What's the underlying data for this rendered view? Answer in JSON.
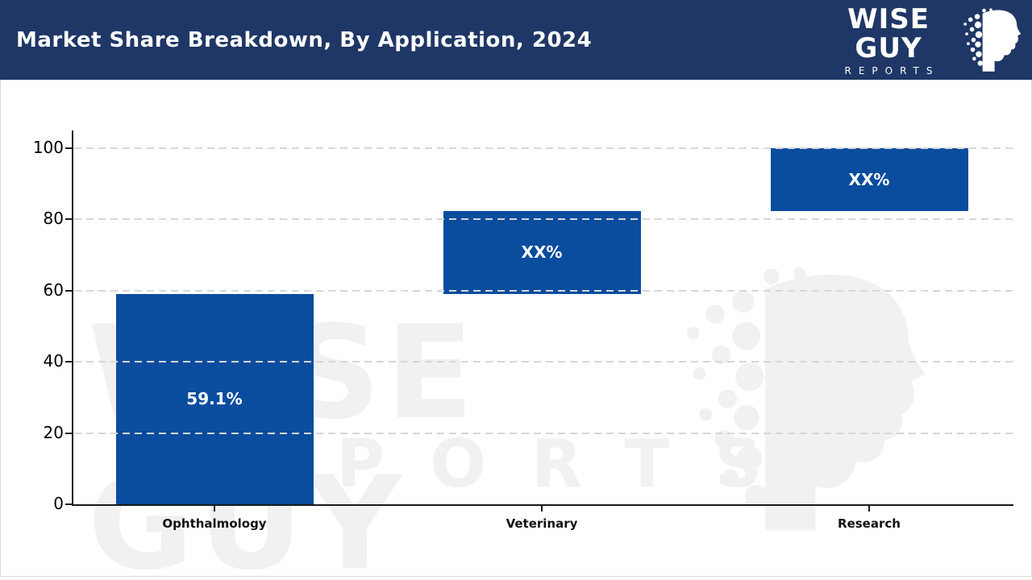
{
  "header": {
    "title": "Market Share Breakdown, By Application, 2024",
    "logo": {
      "line1": "WISE GUY",
      "line2": "REPORTS"
    }
  },
  "watermark": {
    "line1": "WISE GUY",
    "line2": "REPORTS"
  },
  "colors": {
    "header_bg": "#1f3766",
    "bar": "#0a4c9e",
    "bar_label": "#ffffff",
    "grid": "#d7d7d7",
    "axis": "#1a1a1a",
    "tick_label": "#000000",
    "watermark": "#f1f1f3",
    "logo_white": "#ffffff"
  },
  "chart_data": {
    "type": "bar",
    "subtype": "waterfall",
    "title": "Market Share Breakdown, By Application, 2024",
    "categories": [
      "Ophthalmology",
      "Veterinary",
      "Research"
    ],
    "bars": [
      {
        "category": "Ophthalmology",
        "start": 0,
        "end": 59.1,
        "label": "59.1%"
      },
      {
        "category": "Veterinary",
        "start": 59.1,
        "end": 82.4,
        "label": "XX%"
      },
      {
        "category": "Research",
        "start": 82.4,
        "end": 100,
        "label": "XX%"
      }
    ],
    "xlabel": "",
    "ylabel": "",
    "yticks": [
      0,
      20,
      40,
      60,
      80,
      100
    ],
    "ylim": [
      0,
      105
    ],
    "grid": "horizontal-dashed",
    "grid_above_bars": true,
    "legend": "none"
  }
}
